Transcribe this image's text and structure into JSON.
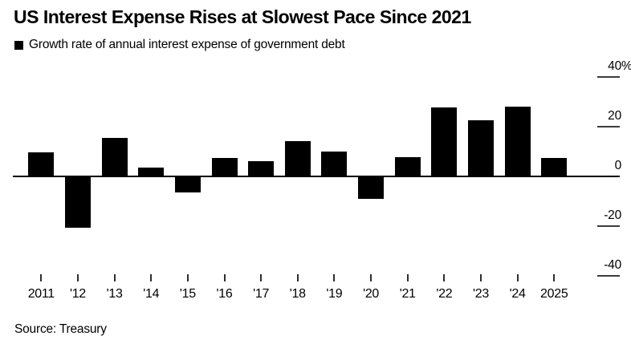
{
  "header": {
    "title": "US Interest Expense Rises at Slowest Pace Since 2021",
    "legend_label": "Growth rate of annual interest expense of government debt",
    "legend_marker_color": "#000000"
  },
  "source": "Source: Treasury",
  "chart_data": {
    "type": "bar",
    "title": "US Interest Expense Rises at Slowest Pace Since 2021",
    "legend": "Growth rate of annual interest expense of government debt",
    "categories": [
      2011,
      2012,
      2013,
      2014,
      2015,
      2016,
      2017,
      2018,
      2019,
      2020,
      2021,
      2022,
      2023,
      2024,
      2025
    ],
    "tick_labels": [
      "2011",
      "'12",
      "'13",
      "'14",
      "'15",
      "'16",
      "'17",
      "'18",
      "'19",
      "'20",
      "'21",
      "'22",
      "'23",
      "'24",
      "2025"
    ],
    "values": [
      9.7,
      -20.8,
      15.5,
      3.6,
      -6.6,
      7.5,
      6.0,
      14.1,
      9.9,
      -9.0,
      7.6,
      27.6,
      22.5,
      28.0,
      7.3
    ],
    "unit": "%",
    "xlabel": "",
    "ylabel": "",
    "ylim": [
      -45,
      42
    ],
    "y_ticks": [
      {
        "value": 40,
        "label": "40%"
      },
      {
        "value": 20,
        "label": "20"
      },
      {
        "value": 0,
        "label": "0"
      },
      {
        "value": -20,
        "label": "-20"
      },
      {
        "value": -40,
        "label": "-40"
      }
    ],
    "bar_color": "#000000",
    "grid": false,
    "legend_position": "top-left",
    "axis_labels_position": "right"
  }
}
